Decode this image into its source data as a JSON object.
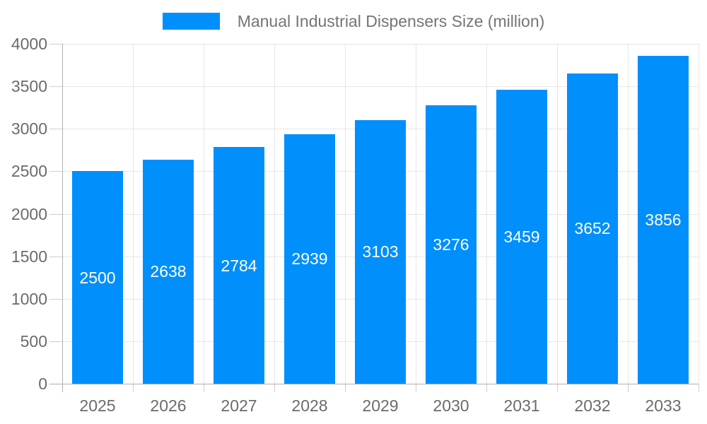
{
  "legend": {
    "label": "Manual Industrial Dispensers Size (million)"
  },
  "chart_data": {
    "type": "bar",
    "title": "",
    "xlabel": "",
    "ylabel": "",
    "series_name": "Manual Industrial Dispensers Size (million)",
    "categories": [
      "2025",
      "2026",
      "2027",
      "2028",
      "2029",
      "2030",
      "2031",
      "2032",
      "2033"
    ],
    "values": [
      2500,
      2638,
      2784,
      2939,
      3103,
      3276,
      3459,
      3652,
      3856
    ],
    "value_labels": [
      "2500",
      "2638",
      "2784",
      "2939",
      "3103",
      "3276",
      "3459",
      "3652",
      "3856"
    ],
    "ylim": [
      0,
      4000
    ],
    "yticks": [
      0,
      500,
      1000,
      1500,
      2000,
      2500,
      3000,
      3500,
      4000
    ],
    "ytick_labels": [
      "0",
      "500",
      "1000",
      "1500",
      "2000",
      "2500",
      "3000",
      "3500",
      "4000"
    ],
    "grid": true,
    "legend_position": "top",
    "colors": {
      "bar": "#008FFB",
      "value_label": "#ffffff",
      "axis_label": "#6b6b6b",
      "legend_text": "#757575",
      "gridline": "#e6e6e6",
      "tick": "#cfcfcf",
      "axis_line": "#b0b0b0",
      "background": "#ffffff"
    }
  }
}
